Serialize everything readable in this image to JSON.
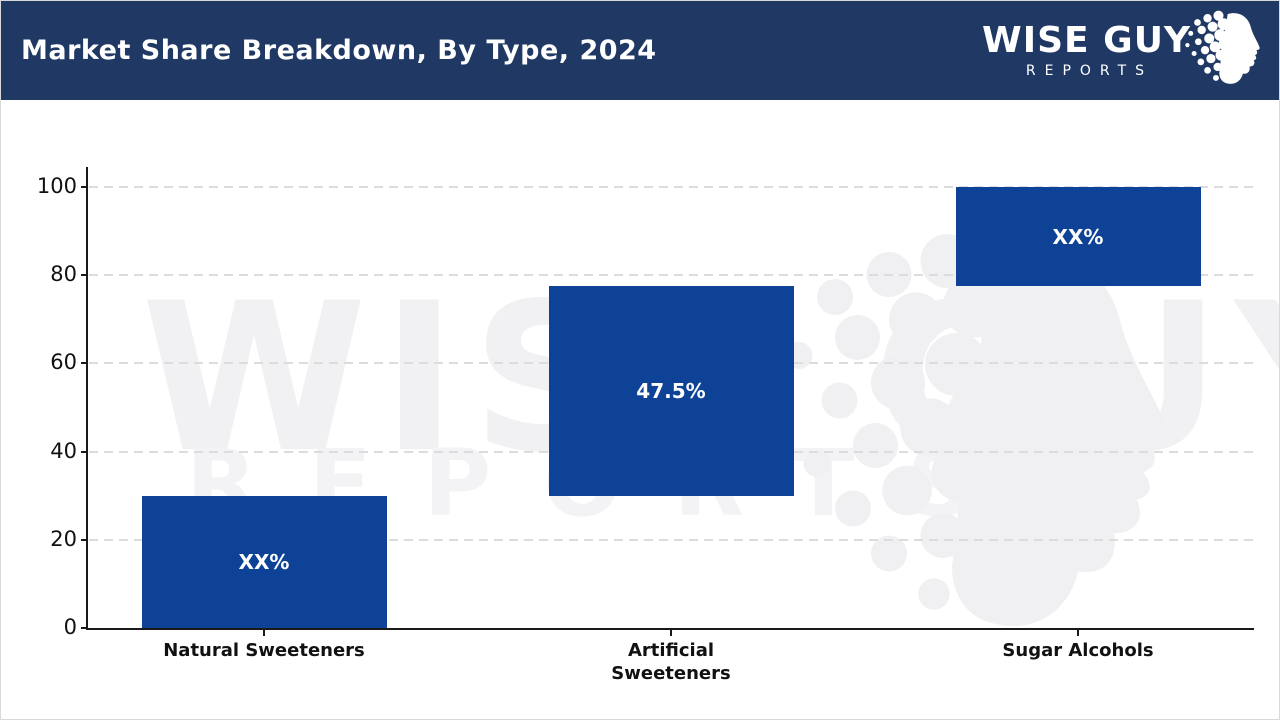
{
  "header": {
    "title": "Market Share Breakdown, By Type, 2024",
    "logo": {
      "line1": "WISE GUY",
      "line2": "REPORTS",
      "face_icon": "dotted-head-profile-icon"
    }
  },
  "watermark": {
    "line1": "WISE GUY",
    "line2": "REPORTS",
    "face_icon": "dotted-head-profile-icon"
  },
  "chart_data": {
    "type": "bar",
    "subtype": "waterfall",
    "title": "Market Share Breakdown, By Type, 2024",
    "categories": [
      "Natural Sweeteners",
      "Artificial\nSweeteners",
      "Sugar Alcohols"
    ],
    "segments": [
      {
        "category": "Natural Sweeteners",
        "start": 0,
        "end": 30,
        "value_label": "XX%"
      },
      {
        "category": "Artificial Sweeteners",
        "start": 30,
        "end": 77.5,
        "value_label": "47.5%"
      },
      {
        "category": "Sugar Alcohols",
        "start": 77.5,
        "end": 100,
        "value_label": "XX%"
      }
    ],
    "yticks": [
      0,
      20,
      40,
      60,
      80,
      100
    ],
    "ylim": [
      0,
      100
    ],
    "xlabel": "",
    "ylabel": "",
    "grid": "horizontal-dashed",
    "legend": "none",
    "bar_color": "#0d4296",
    "header_color": "#1f3864",
    "gridline_color": "#dcdcdc",
    "watermark_color": "#f1f1f3"
  }
}
